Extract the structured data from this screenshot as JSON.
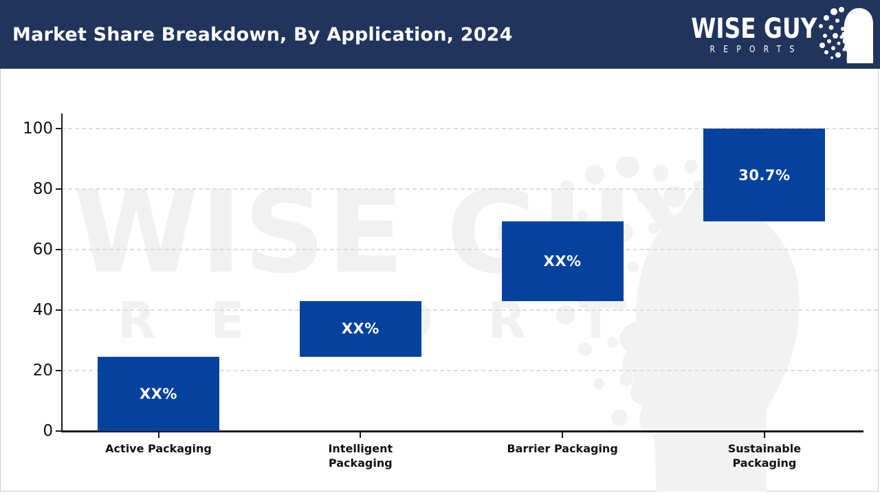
{
  "header": {
    "title": "Market Share Breakdown, By Application, 2024",
    "logo": {
      "name": "WISE GUY",
      "tagline": "REPORTS"
    }
  },
  "watermark": {
    "line1": "WISE GUY",
    "line2": "REPORTS"
  },
  "chart_data": {
    "type": "bar",
    "subtype": "waterfall",
    "title": "Market Share Breakdown, By Application, 2024",
    "xlabel": "",
    "ylabel": "",
    "legend": "none",
    "grid": "horizontal-dashed",
    "categories": [
      "Active Packaging",
      "Intelligent\nPackaging",
      "Barrier Packaging",
      "Sustainable\nPackaging"
    ],
    "segments": [
      {
        "category": "Active Packaging",
        "start": 0,
        "end": 24.5,
        "label": "XX%"
      },
      {
        "category": "Intelligent Packaging",
        "start": 24.5,
        "end": 43.0,
        "label": "XX%"
      },
      {
        "category": "Barrier Packaging",
        "start": 43.0,
        "end": 69.3,
        "label": "XX%"
      },
      {
        "category": "Sustainable Packaging",
        "start": 69.3,
        "end": 100,
        "label": "30.7%"
      }
    ],
    "yticks": [
      0,
      20,
      40,
      60,
      80,
      100
    ],
    "ylim": [
      0,
      105
    ],
    "bar_color": "#05429d",
    "bar_label_color": "#ffffff"
  },
  "colors": {
    "header_bg": "#21345c",
    "axis": "#1a1a1a",
    "gridline": "#dcdcdc",
    "watermark": "#f1f1f2",
    "frame_border": "#cccccc"
  }
}
